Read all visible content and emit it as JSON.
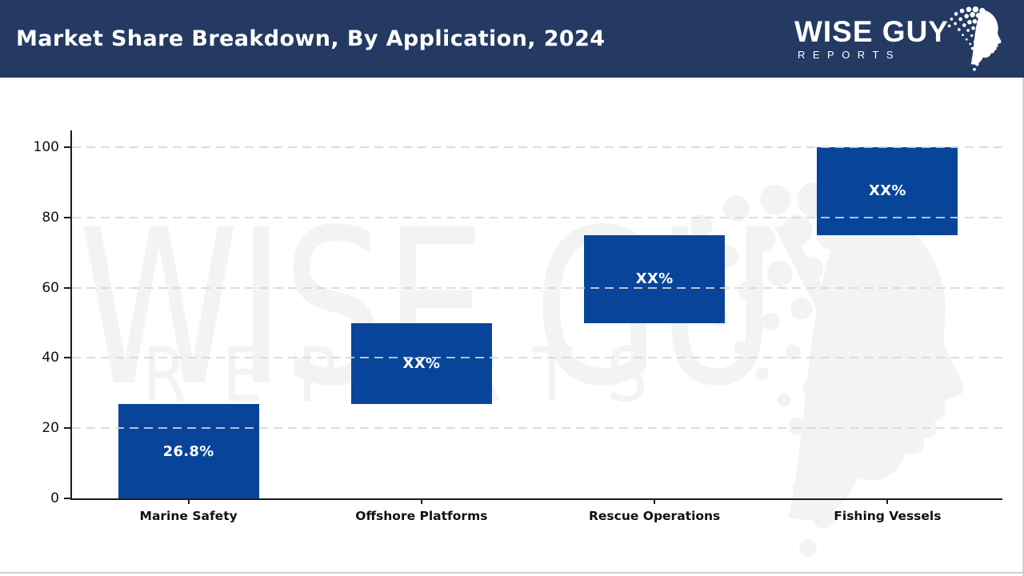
{
  "header": {
    "title": "Market Share Breakdown, By Application, 2024",
    "logo": {
      "line1": "WISE GUY",
      "line2": "REPORTS",
      "icon": "dotted-head-profile-icon"
    }
  },
  "watermark": {
    "line1": "WISE GUY",
    "line2": "REPORTS",
    "icon": "dotted-head-profile-icon"
  },
  "chart_data": {
    "type": "bar",
    "subtype": "waterfall-floating-bars",
    "title": "Market Share Breakdown, By Application, 2024",
    "categories": [
      "Marine Safety",
      "Offshore Platforms",
      "Rescue Operations",
      "Fishing Vessels"
    ],
    "series": [
      {
        "name": "Market Share %",
        "segments": [
          {
            "category": "Marine Safety",
            "start": 0,
            "end": 26.8,
            "label": "26.8%"
          },
          {
            "category": "Offshore Platforms",
            "start": 26.8,
            "end": 50,
            "label": "XX%"
          },
          {
            "category": "Rescue Operations",
            "start": 50,
            "end": 75,
            "label": "XX%"
          },
          {
            "category": "Fishing Vessels",
            "start": 75,
            "end": 100,
            "label": "XX%"
          }
        ]
      }
    ],
    "xlabel": "",
    "ylabel": "",
    "ylim": [
      0,
      105
    ],
    "yticks": [
      0,
      20,
      40,
      60,
      80,
      100
    ],
    "grid": "horizontal-dashed, drawn above bars",
    "legend": "none"
  },
  "colors": {
    "header_bg": "#243a63",
    "bar_fill": "#08459a",
    "bar_label_text": "#ffffff",
    "grid_line": "#d7d7d7",
    "axis_line": "#1c1c1c",
    "tick_text": "#111111",
    "watermark": "#f3f3f4",
    "title_text": "#ffffff",
    "footer_line": "#cfcfcf"
  }
}
